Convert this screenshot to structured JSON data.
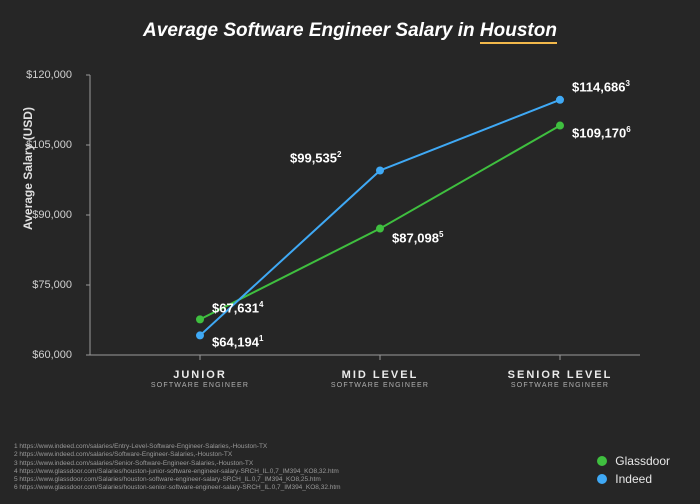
{
  "title_prefix": "Average Software Engineer Salary in ",
  "title_underline": "Houston",
  "chart": {
    "type": "line",
    "background_color": "#262626",
    "axis_color": "#9a9a9a",
    "ylabel": "Average Salary (USD)",
    "ylim": [
      60000,
      120000
    ],
    "yticks": [
      {
        "value": 60000,
        "label": "$60,000"
      },
      {
        "value": 75000,
        "label": "$75,000"
      },
      {
        "value": 90000,
        "label": "$90,000"
      },
      {
        "value": 105000,
        "label": "$105,000"
      },
      {
        "value": 120000,
        "label": "$120,000"
      }
    ],
    "categories": [
      {
        "main": "JUNIOR",
        "sub": "SOFTWARE ENGINEER"
      },
      {
        "main": "MID LEVEL",
        "sub": "SOFTWARE ENGINEER"
      },
      {
        "main": "SENIOR LEVEL",
        "sub": "SOFTWARE ENGINEER"
      }
    ],
    "series": [
      {
        "name": "Glassdoor",
        "color": "#3fbf3f",
        "values": [
          67631,
          87098,
          109170
        ],
        "labels": [
          "$67,631",
          "$87,098",
          "$109,170"
        ],
        "refs": [
          "4",
          "5",
          "6"
        ]
      },
      {
        "name": "Indeed",
        "color": "#3fa9f5",
        "values": [
          64194,
          99535,
          114686
        ],
        "labels": [
          "$64,194",
          "$99,535",
          "$114,686"
        ],
        "refs": [
          "1",
          "2",
          "3"
        ]
      }
    ],
    "marker_radius": 4,
    "title_fontsize": 19
  },
  "footnotes": [
    "1 https://www.indeed.com/salaries/Entry-Level-Software-Engineer-Salaries,-Houston-TX",
    "2 https://www.indeed.com/salaries/Software-Engineer-Salaries,-Houston-TX",
    "3 https://www.indeed.com/salaries/Senior-Software-Engineer-Salaries,-Houston-TX",
    "4 https://www.glassdoor.com/Salaries/houston-junior-software-engineer-salary-SRCH_IL.0,7_IM394_KO8,32.htm",
    "5 https://www.glassdoor.com/Salaries/houston-software-engineer-salary-SRCH_IL.0,7_IM394_KO8,25.htm",
    "6 https://www.glassdoor.com/Salaries/houston-senior-software-engineer-salary-SRCH_IL.0,7_IM394_KO8,32.htm"
  ],
  "legend_label_0": "Glassdoor",
  "legend_label_1": "Indeed"
}
